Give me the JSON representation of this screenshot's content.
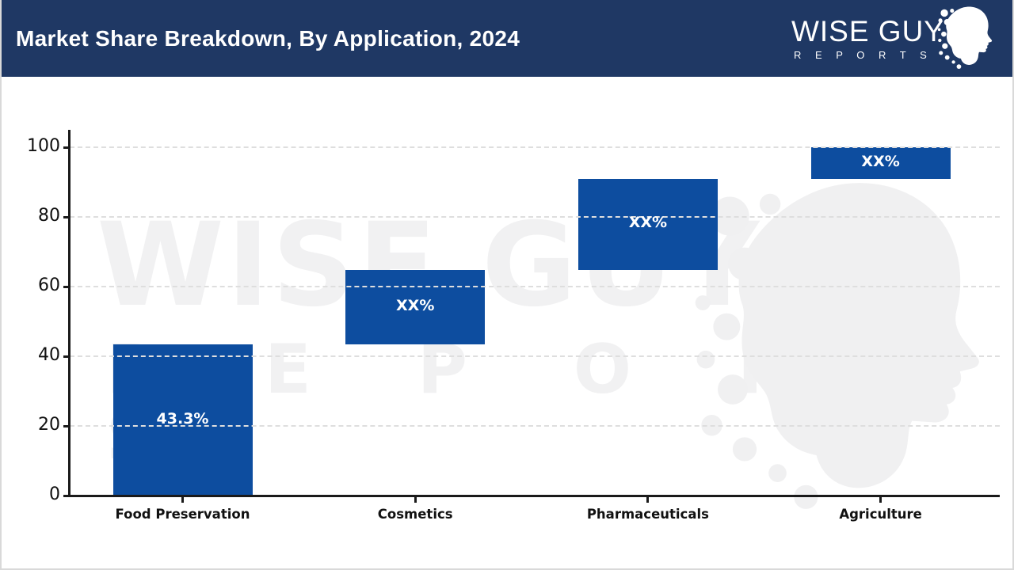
{
  "page": {
    "header": {
      "title": "Market Share Breakdown, By Application, 2024",
      "bg_color": "#1f3864",
      "logo": {
        "line1": "WISE GUY",
        "line2": "R E P O R T S"
      }
    },
    "watermark": {
      "line1": "WISE GUY",
      "line2": "R E P O R T S"
    }
  },
  "chart_data": {
    "type": "bar",
    "subtype": "waterfall",
    "title": "Market Share Breakdown, By Application, 2024",
    "categories": [
      "Food Preservation",
      "Cosmetics",
      "Pharmaceuticals",
      "Agriculture"
    ],
    "segments": [
      {
        "category": "Food Preservation",
        "start": 0,
        "end": 43.3,
        "label": "43.3%"
      },
      {
        "category": "Cosmetics",
        "start": 43.3,
        "end": 64.7,
        "label": "XX%"
      },
      {
        "category": "Pharmaceuticals",
        "start": 64.7,
        "end": 91.0,
        "label": "XX%"
      },
      {
        "category": "Agriculture",
        "start": 91.0,
        "end": 100.0,
        "label": "XX%"
      }
    ],
    "yticks": [
      0,
      20,
      40,
      60,
      80,
      100
    ],
    "ylim": [
      0,
      105
    ],
    "xlabel": "",
    "ylabel": "",
    "grid": "horizontal-dashed",
    "legend": "none",
    "bar_color": "#0d4d9f",
    "bar_label_color": "#ffffff",
    "axis_color": "#1a1a1a",
    "gridline_color": "#dedede"
  }
}
